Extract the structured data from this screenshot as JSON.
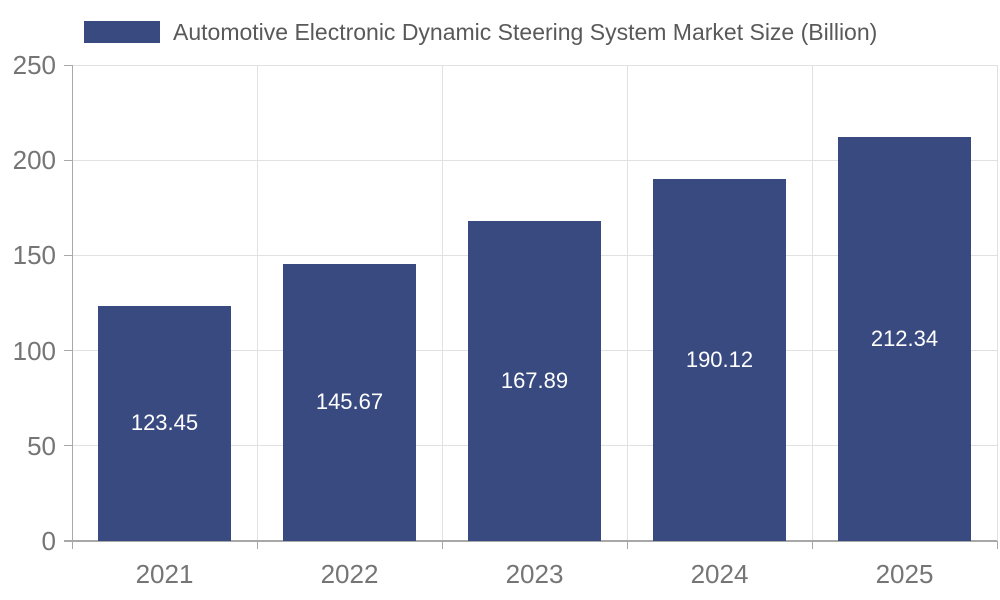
{
  "chart_data": {
    "type": "bar",
    "legend": "Automotive Electronic Dynamic Steering System Market Size (Billion)",
    "categories": [
      "2021",
      "2022",
      "2023",
      "2024",
      "2025"
    ],
    "values": [
      123.45,
      145.67,
      167.89,
      190.12,
      212.34
    ],
    "bar_labels": [
      "123.45",
      "145.67",
      "167.89",
      "190.12",
      "212.34"
    ],
    "ylim": [
      0,
      250
    ],
    "yticks": [
      0,
      50,
      100,
      150,
      200,
      250
    ],
    "ytick_labels": [
      "0",
      "50",
      "100",
      "150",
      "200",
      "250"
    ],
    "grid": true,
    "legend_position": "top-left",
    "value_label_position": "center-of-bar",
    "colors": {
      "bar": "#394a81",
      "bar_label_text": "#ffffff",
      "tick_label": "#757575",
      "legend_text": "#595959",
      "grid_line": "#e1e1e1",
      "axis_line": "#a8a8a8",
      "background": "#ffffff"
    }
  }
}
